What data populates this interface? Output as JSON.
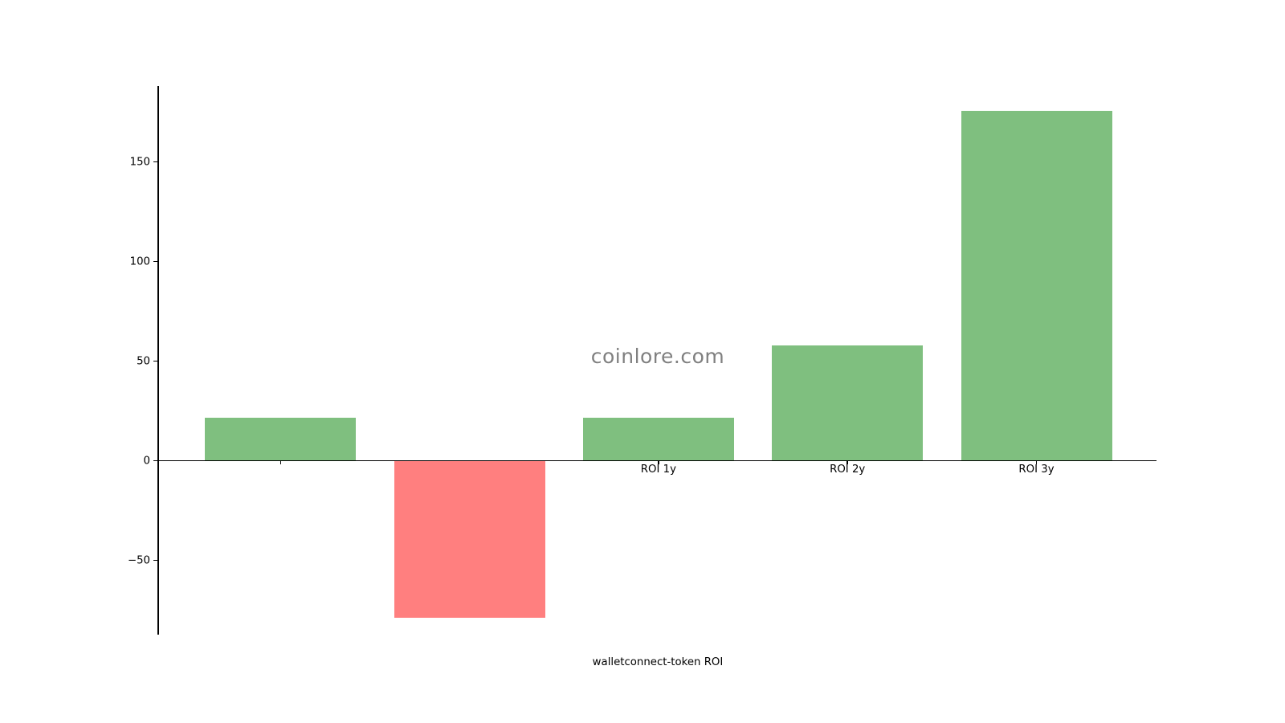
{
  "watermark": {
    "text": "coinlore.com",
    "color": "#808080"
  },
  "chart_data": {
    "type": "bar",
    "title": "",
    "xlabel": "walletconnect-token ROI",
    "ylabel": "",
    "categories": [
      "",
      "",
      "ROI 1y",
      "ROI 2y",
      "ROI 3y"
    ],
    "values": [
      21.4,
      -78.8,
      21.4,
      58.0,
      175.7
    ],
    "yticks": [
      150,
      100,
      50,
      0,
      -50
    ],
    "ylim": [
      -87,
      188
    ],
    "grid": false,
    "legend": "none",
    "background": "#ffffff",
    "colors": {
      "positive": "#7fbf7f",
      "negative": "#ff7f7f",
      "axis": "#000000",
      "tick_label_color": "#000000"
    }
  }
}
